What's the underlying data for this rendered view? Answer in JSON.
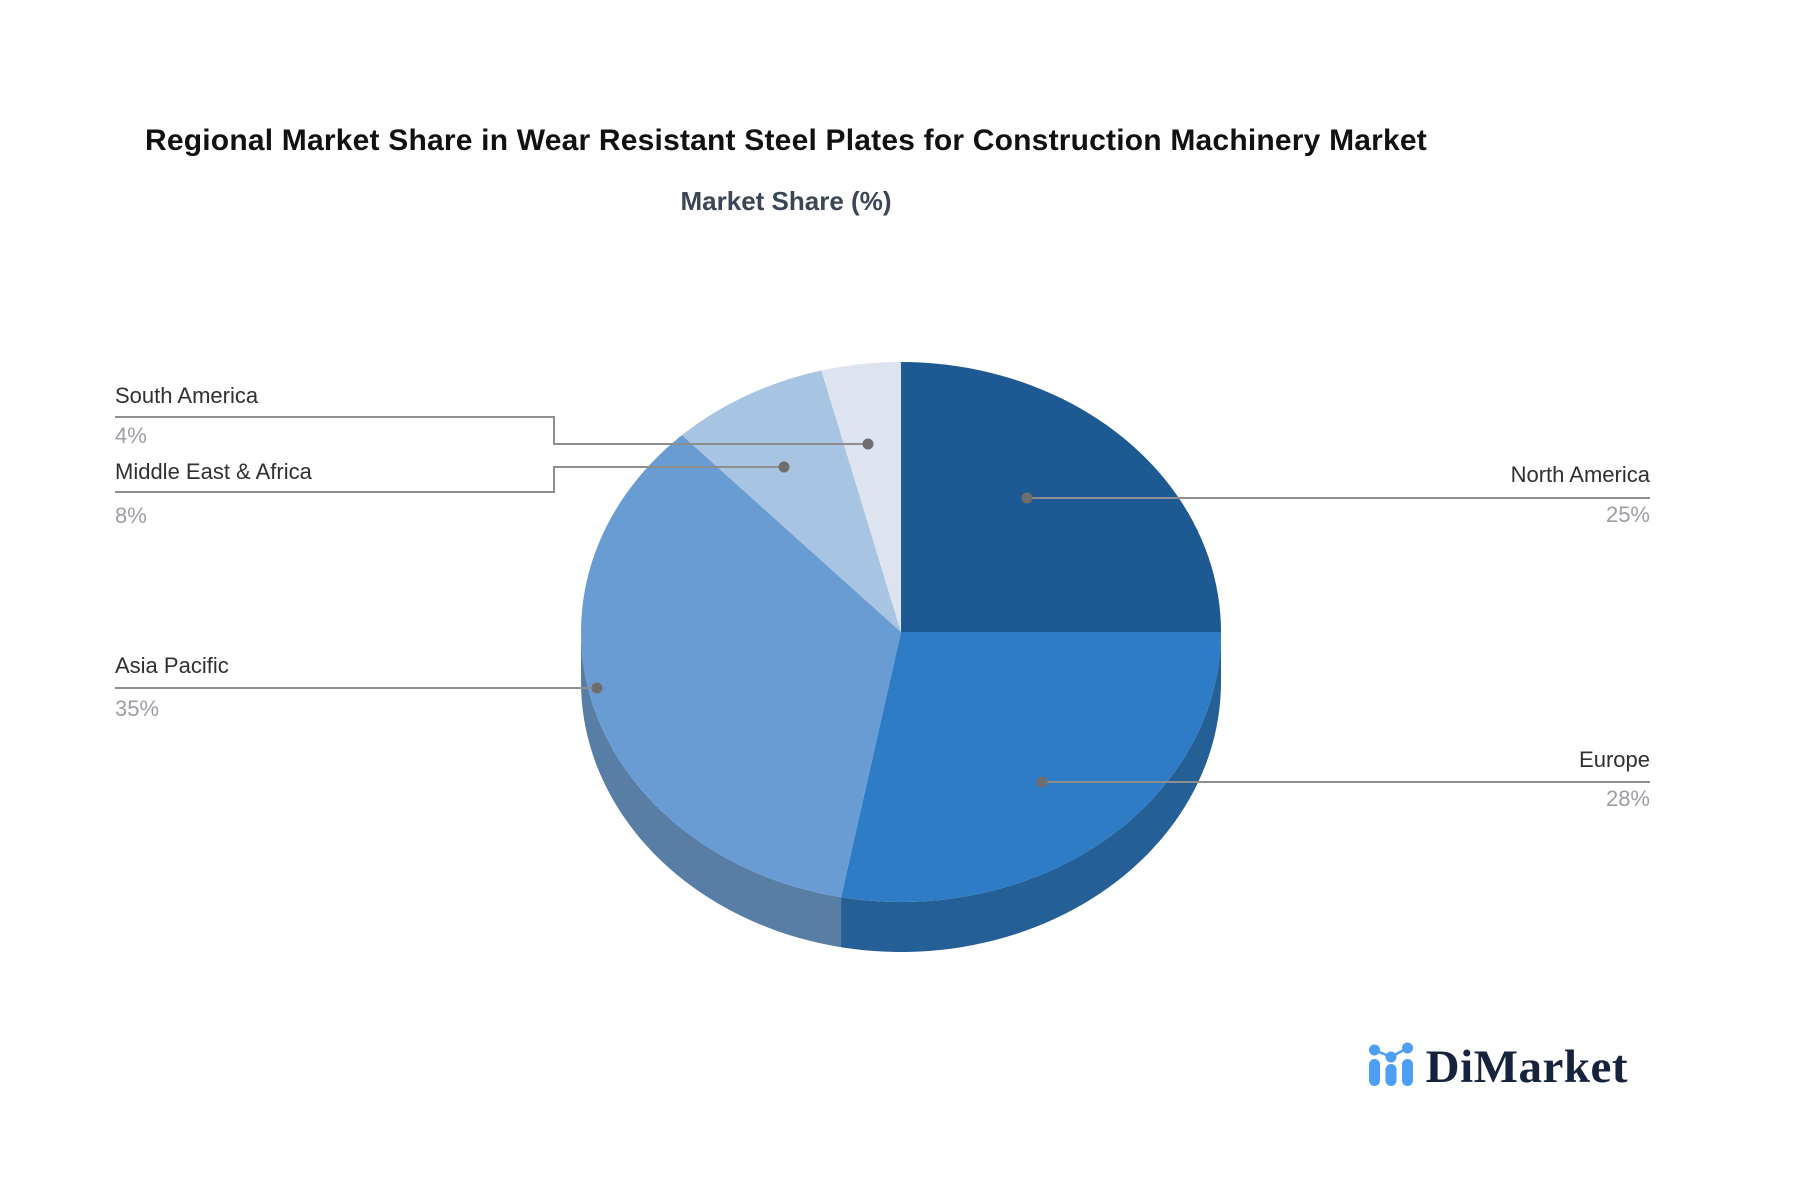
{
  "title": "Regional Market Share in Wear Resistant Steel Plates for Construction Machinery Market",
  "subtitle": "Market Share (%)",
  "logo": {
    "text": "DiMarket",
    "icon": "bar-chart-logo-icon",
    "icon_color": "#4D9FF6",
    "text_color": "#15233C"
  },
  "colors": {
    "leader_line": "#8E8E8E",
    "leader_dot": "#6E6E6E",
    "label_text": "#303030",
    "percent_text": "#9B9FA5",
    "title_text": "#111111",
    "subtitle_text": "#3A4656"
  },
  "chart_data": {
    "type": "pie",
    "style": "3d-pie",
    "title": "Regional Market Share in Wear Resistant Steel Plates for Construction Machinery Market",
    "subtitle": "Market Share (%)",
    "unit": "%",
    "start_angle_deg": 0,
    "clockwise": true,
    "legend_position": "none",
    "segments": [
      {
        "label": "North America",
        "value": 25,
        "display": "25%",
        "color": "#1D5A93",
        "rim_color": "#174A7B"
      },
      {
        "label": "Europe",
        "value": 28,
        "display": "28%",
        "color": "#2E7CC5",
        "rim_color": "#245F96"
      },
      {
        "label": "Asia Pacific",
        "value": 35,
        "display": "35%",
        "color": "#6A9CD4",
        "rim_color": "#587EA5"
      },
      {
        "label": "Middle East & Africa",
        "value": 8,
        "display": "8%",
        "color": "#A7C4E2",
        "rim_color": "#8CA6BF"
      },
      {
        "label": "South America",
        "value": 4,
        "display": "4%",
        "color": "#DDE4EF",
        "rim_color": "#BBC5D4"
      }
    ]
  }
}
